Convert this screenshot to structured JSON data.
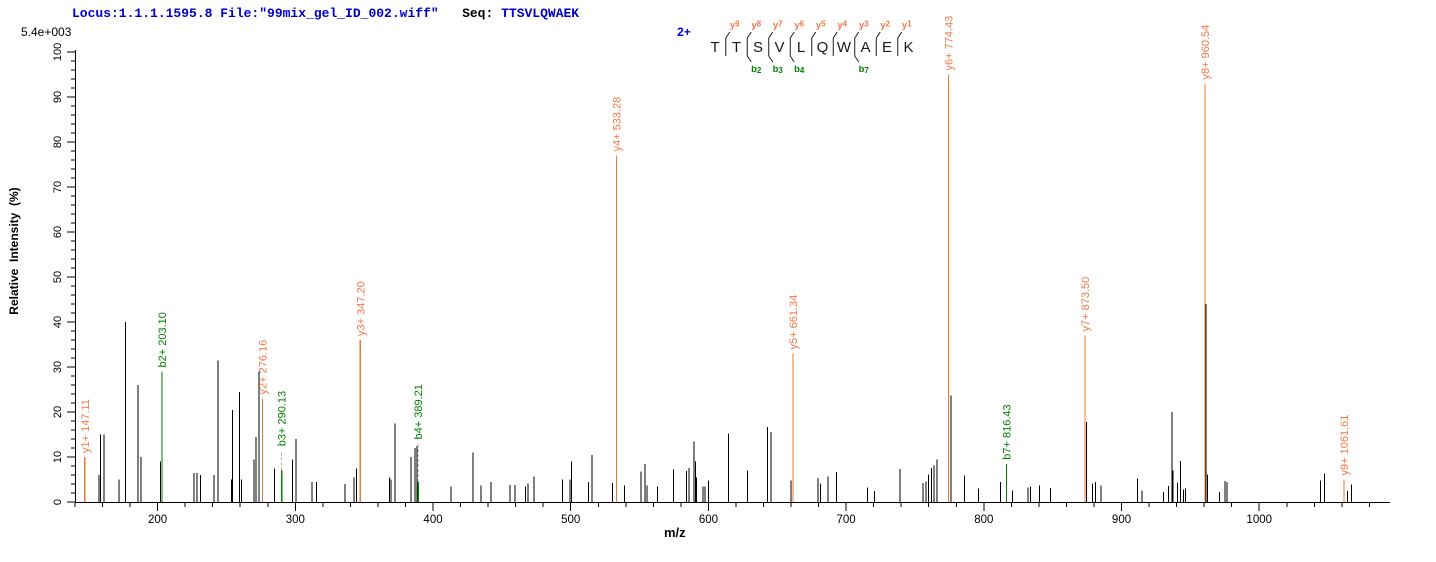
{
  "header": {
    "locus_file": "Locus:1.1.1.1595.8 File:\"99mix_gel_ID_002.wiff\"",
    "gap": "   ",
    "seq_label": "Seq: ",
    "seq_value": "TTSVLQWAEK",
    "intensity_scale": "5.4e+003"
  },
  "axes": {
    "x_label": "m/z",
    "y_label": "Relative  Intensity  (%)",
    "x_range": [
      140,
      1095
    ],
    "y_range": [
      0,
      100
    ],
    "x_major_ticks": [
      200,
      300,
      400,
      500,
      600,
      700,
      800,
      900,
      1000
    ],
    "x_minor_step": 20,
    "y_major_step": 10,
    "y_minor_step": 2
  },
  "peptide": {
    "charge": "2+",
    "residues": [
      "T",
      "T",
      "S",
      "V",
      "L",
      "Q",
      "W",
      "A",
      "E",
      "K"
    ],
    "y_ions": [
      {
        "gap": 1,
        "letter": "y",
        "num": "9"
      },
      {
        "gap": 2,
        "letter": "y",
        "num": "8"
      },
      {
        "gap": 3,
        "letter": "y",
        "num": "7"
      },
      {
        "gap": 4,
        "letter": "y",
        "num": "6"
      },
      {
        "gap": 5,
        "letter": "y",
        "num": "5"
      },
      {
        "gap": 6,
        "letter": "y",
        "num": "4"
      },
      {
        "gap": 7,
        "letter": "y",
        "num": "3"
      },
      {
        "gap": 8,
        "letter": "y",
        "num": "2"
      },
      {
        "gap": 9,
        "letter": "y",
        "num": "1"
      }
    ],
    "b_ions": [
      {
        "gap": 2,
        "letter": "b",
        "num": "2"
      },
      {
        "gap": 3,
        "letter": "b",
        "num": "3"
      },
      {
        "gap": 4,
        "letter": "b",
        "num": "4"
      },
      {
        "gap": 7,
        "letter": "b",
        "num": "7"
      }
    ]
  },
  "colors": {
    "y_ion_line": "#e87b35",
    "y_ion_label": "#f37849",
    "b_ion_line": "#008000",
    "b_ion_label": "#008000",
    "peak": "#000000",
    "axis": "#000000",
    "dashed": "#aaaaaa",
    "header_blue": "#0000cc",
    "charge_blue": "#0000ee"
  },
  "chart_data": {
    "type": "stem",
    "title": "MS/MS fragmentation spectrum of peptide TTSVLQWAEK (2+)",
    "xlabel": "m/z",
    "ylabel": "Relative  Intensity  (%)",
    "xlim": [
      140,
      1095
    ],
    "ylim": [
      0,
      100
    ],
    "intensity_full_scale": "5.4e+003",
    "grid": false,
    "labeled_peaks": [
      {
        "label": "y1+ 147.11",
        "ion": "y1+",
        "mz": 147.11,
        "intensity_pct": 10,
        "series": "y"
      },
      {
        "label": "b2+ 203.10",
        "ion": "b2+",
        "mz": 203.1,
        "intensity_pct": 29,
        "series": "b"
      },
      {
        "label": "y2+ 276.16",
        "ion": "y2+",
        "mz": 276.16,
        "intensity_pct": 23,
        "series": "y"
      },
      {
        "label": "b3+ 290.13",
        "ion": "b3+",
        "mz": 290.13,
        "intensity_pct": 7,
        "series": "b",
        "dash_to_pct": 11.5
      },
      {
        "label": "y3+ 347.20",
        "ion": "y3+",
        "mz": 347.2,
        "intensity_pct": 36,
        "series": "y"
      },
      {
        "label": "b4+ 389.21",
        "ion": "b4+",
        "mz": 389.21,
        "intensity_pct": 4.5,
        "series": "b",
        "dash_to_pct": 13
      },
      {
        "label": "y4+ 533.28",
        "ion": "y4+",
        "mz": 533.28,
        "intensity_pct": 77,
        "series": "y"
      },
      {
        "label": "y5+ 661.34",
        "ion": "y5+",
        "mz": 661.34,
        "intensity_pct": 33,
        "series": "y"
      },
      {
        "label": "y6+ 774.43",
        "ion": "y6+",
        "mz": 774.43,
        "intensity_pct": 95,
        "series": "y"
      },
      {
        "label": "b7+ 816.43",
        "ion": "b7+",
        "mz": 816.43,
        "intensity_pct": 8.5,
        "series": "b"
      },
      {
        "label": "y7+ 873.50",
        "ion": "y7+",
        "mz": 873.5,
        "intensity_pct": 37,
        "series": "y"
      },
      {
        "label": "y8+ 960.54",
        "ion": "y8+",
        "mz": 960.54,
        "intensity_pct": 93,
        "series": "y"
      },
      {
        "label": "y9+ 1061.61",
        "ion": "y9+",
        "mz": 1061.61,
        "intensity_pct": 5,
        "series": "y"
      }
    ],
    "unlabeled_peaks": [
      [
        140.5,
        6
      ],
      [
        157.5,
        6
      ],
      [
        158.5,
        15
      ],
      [
        161,
        15
      ],
      [
        172,
        5
      ],
      [
        176.5,
        40
      ],
      [
        185.7,
        26
      ],
      [
        188,
        10
      ],
      [
        202,
        9
      ],
      [
        226.5,
        6.5
      ],
      [
        228.5,
        6.5
      ],
      [
        231,
        6
      ],
      [
        241,
        6
      ],
      [
        244,
        31.5
      ],
      [
        253.5,
        5
      ],
      [
        254.5,
        20.5
      ],
      [
        259.5,
        24.5
      ],
      [
        261,
        5
      ],
      [
        270,
        9.5
      ],
      [
        271.5,
        14.5
      ],
      [
        273.5,
        29
      ],
      [
        285,
        7.5
      ],
      [
        298,
        9.5
      ],
      [
        300.5,
        14
      ],
      [
        312,
        4.5
      ],
      [
        315.5,
        4.5
      ],
      [
        336,
        4
      ],
      [
        342.5,
        5.5
      ],
      [
        344.5,
        7.5
      ],
      [
        368.5,
        5.5
      ],
      [
        369.5,
        5
      ],
      [
        372.3,
        17.5
      ],
      [
        384,
        10
      ],
      [
        387,
        12
      ],
      [
        388.5,
        12.5
      ],
      [
        413,
        3.5
      ],
      [
        429,
        11
      ],
      [
        435,
        3.7
      ],
      [
        442,
        4.4
      ],
      [
        456,
        3.8
      ],
      [
        459.5,
        3.8
      ],
      [
        467,
        3.5
      ],
      [
        469,
        4.1
      ],
      [
        473.5,
        5.7
      ],
      [
        494,
        5
      ],
      [
        499.5,
        5
      ],
      [
        500.5,
        9
      ],
      [
        513,
        4.4
      ],
      [
        515.5,
        10.5
      ],
      [
        530.5,
        4.2
      ],
      [
        539,
        3.7
      ],
      [
        551,
        6.8
      ],
      [
        554,
        8.4
      ],
      [
        555.5,
        3.7
      ],
      [
        563,
        3.5
      ],
      [
        574.5,
        7.2
      ],
      [
        584,
        6.9
      ],
      [
        586,
        7.6
      ],
      [
        589.5,
        13.5
      ],
      [
        590.5,
        9
      ],
      [
        591.5,
        5.5
      ],
      [
        596,
        3.5
      ],
      [
        597.5,
        3.5
      ],
      [
        600,
        4.8
      ],
      [
        614.5,
        15.2
      ],
      [
        628.5,
        7
      ],
      [
        643,
        16.7
      ],
      [
        645.5,
        15.6
      ],
      [
        660,
        4.8
      ],
      [
        679.5,
        5.3
      ],
      [
        681.5,
        4.1
      ],
      [
        687,
        5.7
      ],
      [
        693,
        6.7
      ],
      [
        715.5,
        3.2
      ],
      [
        720.5,
        2.4
      ],
      [
        739,
        7.3
      ],
      [
        756,
        4.2
      ],
      [
        758,
        4.6
      ],
      [
        760,
        6.1
      ],
      [
        762,
        7.6
      ],
      [
        764,
        8.1
      ],
      [
        766,
        9.4
      ],
      [
        776,
        23.7
      ],
      [
        786,
        5.9
      ],
      [
        796,
        3
      ],
      [
        812,
        4.4
      ],
      [
        821,
        2.6
      ],
      [
        832,
        3.2
      ],
      [
        834,
        3.5
      ],
      [
        840.5,
        3.7
      ],
      [
        848.5,
        3.1
      ],
      [
        874.5,
        17.8
      ],
      [
        879,
        4.1
      ],
      [
        881,
        4.4
      ],
      [
        885,
        3.7
      ],
      [
        911.5,
        5.2
      ],
      [
        915,
        2.6
      ],
      [
        930.5,
        2.2
      ],
      [
        934,
        3.6
      ],
      [
        936.5,
        20
      ],
      [
        937.5,
        7
      ],
      [
        940.5,
        4.3
      ],
      [
        943,
        9.1
      ],
      [
        945,
        2.8
      ],
      [
        946.5,
        3
      ],
      [
        961.2,
        44
      ],
      [
        962.5,
        6.1
      ],
      [
        971,
        2.2
      ],
      [
        975,
        4.7
      ],
      [
        976.5,
        4.4
      ],
      [
        1044.5,
        4.8
      ],
      [
        1047.5,
        6.3
      ],
      [
        1064,
        2.4
      ],
      [
        1067,
        3.9
      ]
    ]
  }
}
